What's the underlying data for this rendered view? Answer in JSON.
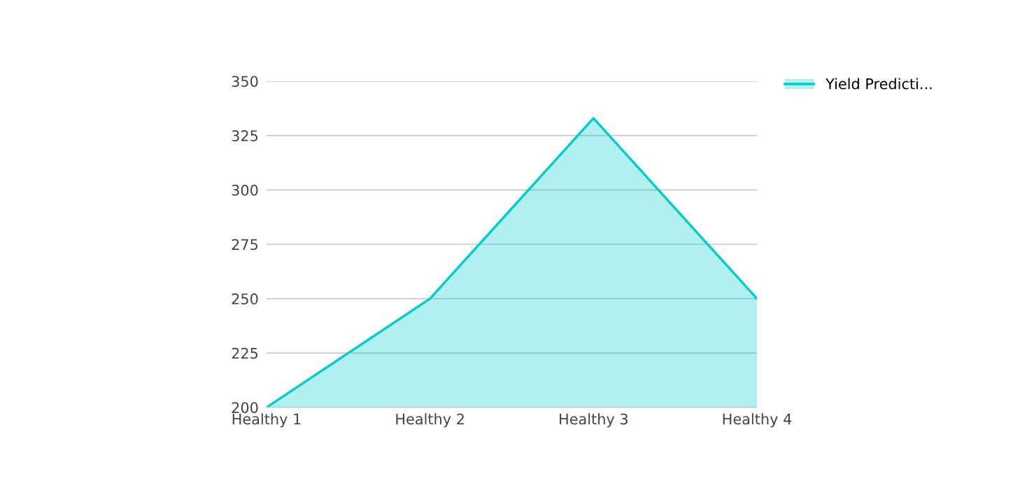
{
  "chart_data": {
    "type": "area",
    "categories": [
      "Healthy 1",
      "Healthy 2",
      "Healthy 3",
      "Healthy 4"
    ],
    "series": [
      {
        "name": "Yield Predicti...",
        "color": "#00cccc",
        "values": [
          200,
          250,
          333,
          250
        ]
      }
    ],
    "ylim": [
      200,
      350
    ],
    "yticks": [
      200,
      225,
      250,
      275,
      300,
      325,
      350
    ],
    "grid": "y",
    "legend": "top right",
    "marker": "none",
    "line_style": "solid"
  }
}
